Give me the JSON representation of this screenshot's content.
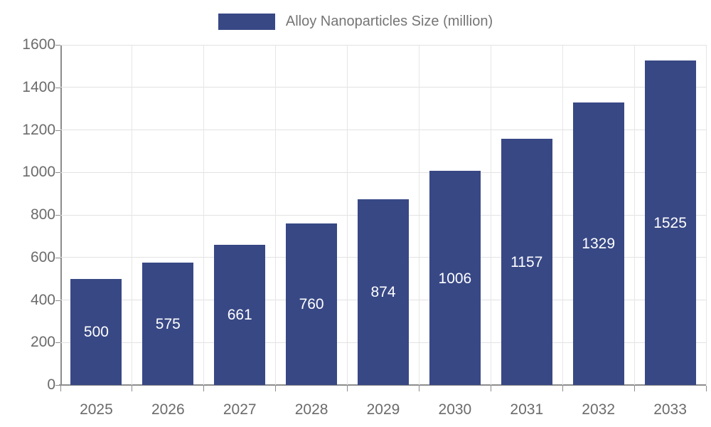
{
  "legend": {
    "label": "Alloy Nanoparticles Size (million)"
  },
  "chart_data": {
    "type": "bar",
    "title": "",
    "xlabel": "",
    "ylabel": "",
    "categories": [
      "2025",
      "2026",
      "2027",
      "2028",
      "2029",
      "2030",
      "2031",
      "2032",
      "2033"
    ],
    "values": [
      500,
      575,
      661,
      760,
      874,
      1006,
      1157,
      1329,
      1525
    ],
    "series_name": "Alloy Nanoparticles Size (million)",
    "ylim": [
      0,
      1600
    ],
    "yticks": [
      0,
      200,
      400,
      600,
      800,
      1000,
      1200,
      1400,
      1600
    ],
    "grid": "on",
    "legend_position": "top-center",
    "colors": {
      "bar": "#384885",
      "grid": "#e2e2e2",
      "axis": "#8c8c8c",
      "tick_text": "#6b6b6b",
      "legend_text": "#757575",
      "value_label": "#ffffff",
      "background": "#ffffff"
    }
  }
}
